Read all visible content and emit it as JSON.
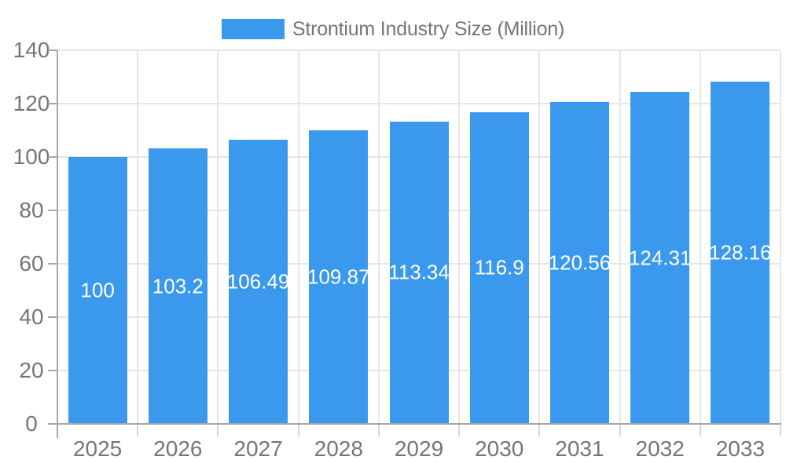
{
  "chart_data": {
    "type": "bar",
    "title": "Strontium Industry Size (Million)",
    "categories": [
      "2025",
      "2026",
      "2027",
      "2028",
      "2029",
      "2030",
      "2031",
      "2032",
      "2033"
    ],
    "values": [
      100,
      103.2,
      106.49,
      109.87,
      113.34,
      116.9,
      120.56,
      124.31,
      128.16
    ],
    "value_labels": [
      "100",
      "103.2",
      "106.49",
      "109.87",
      "113.34",
      "116.9",
      "120.56",
      "124.31",
      "128.16"
    ],
    "xlabel": "",
    "ylabel": "",
    "ylim": [
      0,
      140
    ],
    "yticks": [
      0,
      20,
      40,
      60,
      80,
      100,
      120,
      140
    ],
    "grid": true,
    "legend_position": "top",
    "colors": {
      "bar": "#3A99ED",
      "bar_label": "#FFFFFF",
      "gridline": "#E6E6E6",
      "axis_line": "#A6A6A6",
      "below_axis_tick": "#D6D6D6",
      "tick_label": "#757575",
      "legend_text": "#757575",
      "background": "#FFFFFF"
    }
  }
}
